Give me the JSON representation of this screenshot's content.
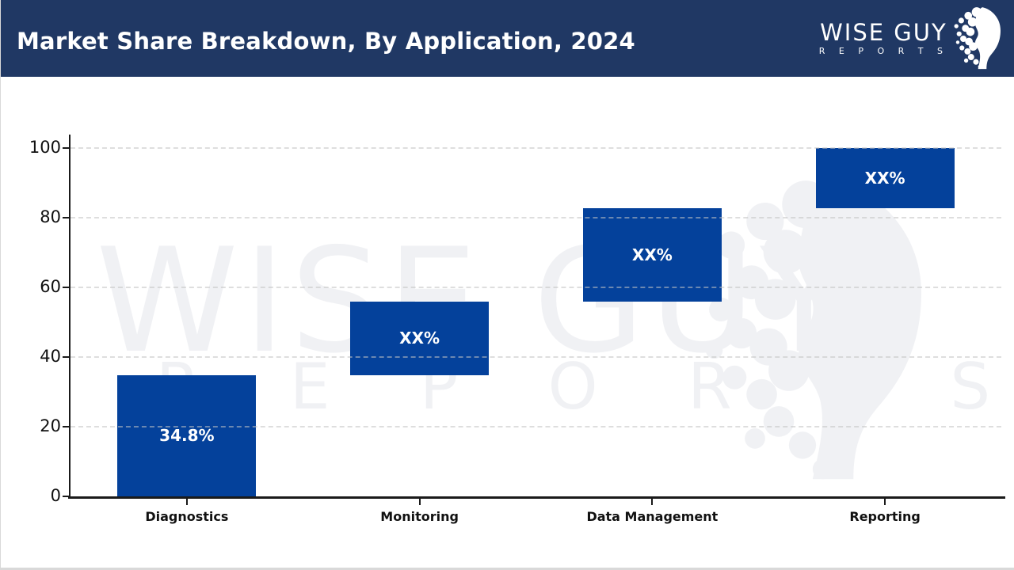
{
  "header": {
    "title": "Market Share Breakdown, By Application, 2024",
    "logo": {
      "line1": "WISE GUY",
      "line2": "R E P O R T S"
    }
  },
  "watermark": {
    "line1": "WISE GUY",
    "line2": "R E P O R T S"
  },
  "chart_data": {
    "type": "bar",
    "subtype": "waterfall",
    "title": "Market Share Breakdown, By Application, 2024",
    "categories": [
      "Diagnostics",
      "Monitoring",
      "Data Management",
      "Reporting"
    ],
    "segments": [
      {
        "category": "Diagnostics",
        "start": 0,
        "end": 34.8,
        "label": "34.8%"
      },
      {
        "category": "Monitoring",
        "start": 34.8,
        "end": 55.9,
        "label": "XX%"
      },
      {
        "category": "Data Management",
        "start": 55.9,
        "end": 82.7,
        "label": "XX%"
      },
      {
        "category": "Reporting",
        "start": 82.7,
        "end": 100,
        "label": "XX%"
      }
    ],
    "xlabel": "",
    "ylabel": "",
    "ylim": [
      0,
      100
    ],
    "yticks": [
      0,
      20,
      40,
      60,
      80,
      100
    ],
    "grid": "horizontal-dashed",
    "legend": "none",
    "colors": {
      "bar": "#04419b",
      "bar_label": "#ffffff",
      "header_bg": "#203864",
      "axis": "#1a1a1a",
      "gridline": "#d9d9d9",
      "watermark": "#f0f1f4"
    }
  }
}
